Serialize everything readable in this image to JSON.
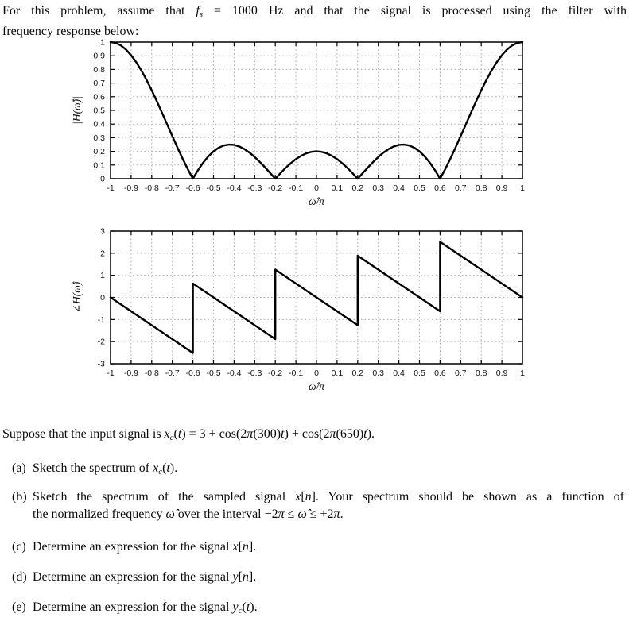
{
  "page": {
    "intro_lines": [
      [
        [
          "r",
          "For this problem, assume that "
        ],
        [
          "i",
          "f"
        ],
        [
          "is",
          "s"
        ],
        [
          "r",
          " = 1000 Hz and that the signal is processed using the filter with"
        ]
      ],
      [
        [
          "r",
          "frequency response below:"
        ]
      ]
    ],
    "suppose_line": [
      [
        "r",
        "Suppose that the input signal is "
      ],
      [
        "i",
        "x"
      ],
      [
        "is",
        "c"
      ],
      [
        "r",
        "("
      ],
      [
        "i",
        "t"
      ],
      [
        "r",
        ") = 3 + cos(2"
      ],
      [
        "i",
        "π"
      ],
      [
        "r",
        "(300)"
      ],
      [
        "i",
        "t"
      ],
      [
        "r",
        ") + cos(2"
      ],
      [
        "i",
        "π"
      ],
      [
        "r",
        "(650)"
      ],
      [
        "i",
        "t"
      ],
      [
        "r",
        ")."
      ]
    ],
    "items": [
      {
        "label": "(a)",
        "lines": [
          [
            [
              "r",
              "Sketch the spectrum of "
            ],
            [
              "i",
              "x"
            ],
            [
              "is",
              "c"
            ],
            [
              "r",
              "("
            ],
            [
              "i",
              "t"
            ],
            [
              "r",
              ")."
            ]
          ]
        ]
      },
      {
        "label": "(b)",
        "lines": [
          [
            [
              "r",
              "Sketch the spectrum of the sampled signal "
            ],
            [
              "i",
              "x"
            ],
            [
              "r",
              "["
            ],
            [
              "i",
              "n"
            ],
            [
              "r",
              "]. Your spectrum should be shown as a function of"
            ]
          ],
          [
            [
              "r",
              "the normalized frequency "
            ],
            [
              "i",
              "ω̂"
            ],
            [
              "r",
              " over the interval −2"
            ],
            [
              "i",
              "π"
            ],
            [
              "r",
              " ≤ "
            ],
            [
              "i",
              "ω̂"
            ],
            [
              "r",
              " ≤ +2"
            ],
            [
              "i",
              "π"
            ],
            [
              "r",
              "."
            ]
          ]
        ]
      },
      {
        "label": "(c)",
        "lines": [
          [
            [
              "r",
              "Determine an expression for the signal "
            ],
            [
              "i",
              "x"
            ],
            [
              "r",
              "["
            ],
            [
              "i",
              "n"
            ],
            [
              "r",
              "]."
            ]
          ]
        ]
      },
      {
        "label": "(d)",
        "lines": [
          [
            [
              "r",
              "Determine an expression for the signal "
            ],
            [
              "i",
              "y"
            ],
            [
              "r",
              "["
            ],
            [
              "i",
              "n"
            ],
            [
              "r",
              "]."
            ]
          ]
        ]
      },
      {
        "label": "(e)",
        "lines": [
          [
            [
              "r",
              "Determine an expression for the signal "
            ],
            [
              "i",
              "y"
            ],
            [
              "is",
              "c"
            ],
            [
              "r",
              "("
            ],
            [
              "i",
              "t"
            ],
            [
              "r",
              ")."
            ]
          ]
        ]
      }
    ]
  },
  "colors": {
    "curve": "#000000",
    "axis": "#000000",
    "grid": "#a8a8a8",
    "background": "#ffffff"
  },
  "chart_data": [
    {
      "type": "line",
      "title": "",
      "xlabel": "ω̂/π",
      "ylabel": "|H(ω̂)|",
      "xlim": [
        -1,
        1
      ],
      "ylim": [
        0,
        1
      ],
      "grid": true,
      "legend": "none",
      "xticks": [
        -1,
        -0.9,
        -0.8,
        -0.7,
        -0.6,
        -0.5,
        -0.4,
        -0.3,
        -0.2,
        -0.1,
        0,
        0.1,
        0.2,
        0.3,
        0.4,
        0.5,
        0.6,
        0.7,
        0.8,
        0.9,
        1
      ],
      "xtick_labels": [
        "-1",
        "-0.9",
        "-0.8",
        "-0.7",
        "-0.6",
        "-0.5",
        "-0.4",
        "-0.3",
        "-0.2",
        "-0.1",
        "0",
        "0.1",
        "0.2",
        "0.3",
        "0.4",
        "0.5",
        "0.6",
        "0.7",
        "0.8",
        "0.9",
        "1"
      ],
      "yticks": [
        0,
        0.1,
        0.2,
        0.3,
        0.4,
        0.5,
        0.6,
        0.7,
        0.8,
        0.9,
        1
      ],
      "ytick_labels": [
        "0",
        "0.1",
        "0.2",
        "0.3",
        "0.4",
        "0.5",
        "0.6",
        "0.7",
        "0.8",
        "0.9",
        "1"
      ],
      "series": [
        {
          "name": "magnitude-response",
          "x": [
            -1,
            -0.975,
            -0.95,
            -0.925,
            -0.9,
            -0.875,
            -0.85,
            -0.825,
            -0.8,
            -0.775,
            -0.75,
            -0.725,
            -0.7,
            -0.675,
            -0.65,
            -0.625,
            -0.6,
            -0.575,
            -0.55,
            -0.525,
            -0.5,
            -0.475,
            -0.45,
            -0.425,
            -0.4,
            -0.375,
            -0.35,
            -0.325,
            -0.3,
            -0.275,
            -0.25,
            -0.225,
            -0.2,
            -0.175,
            -0.15,
            -0.125,
            -0.1,
            -0.075,
            -0.05,
            -0.025,
            0,
            0.025,
            0.05,
            0.075,
            0.1,
            0.125,
            0.15,
            0.175,
            0.2,
            0.225,
            0.25,
            0.275,
            0.3,
            0.325,
            0.35,
            0.375,
            0.4,
            0.425,
            0.45,
            0.475,
            0.5,
            0.525,
            0.55,
            0.575,
            0.6,
            0.625,
            0.65,
            0.675,
            0.7,
            0.725,
            0.75,
            0.775,
            0.8,
            0.825,
            0.85,
            0.875,
            0.9,
            0.925,
            0.95,
            0.975,
            1
          ],
          "y": [
            1,
            0.9937,
            0.9755,
            0.9454,
            0.904,
            0.8524,
            0.7915,
            0.7226,
            0.6472,
            0.5668,
            0.4829,
            0.3972,
            0.3115,
            0.2274,
            0.1465,
            0.0702,
            0,
            0.063,
            0.1178,
            0.1637,
            0.2,
            0.2265,
            0.243,
            0.2498,
            0.2472,
            0.2359,
            0.2167,
            0.1906,
            0.1587,
            0.1224,
            0.0828,
            0.0416,
            0,
            0.0405,
            0.0787,
            0.1133,
            0.1432,
            0.1674,
            0.1853,
            0.1963,
            0.2,
            0.1963,
            0.1853,
            0.1674,
            0.1432,
            0.1133,
            0.0787,
            0.0405,
            0,
            0.0416,
            0.0828,
            0.1224,
            0.1587,
            0.1906,
            0.2167,
            0.2359,
            0.2472,
            0.2498,
            0.243,
            0.2265,
            0.2,
            0.1637,
            0.1178,
            0.063,
            0,
            0.0702,
            0.1465,
            0.2274,
            0.3115,
            0.3972,
            0.4829,
            0.5668,
            0.6472,
            0.7226,
            0.7915,
            0.8524,
            0.904,
            0.9454,
            0.9755,
            0.9937,
            1
          ]
        }
      ]
    },
    {
      "type": "line",
      "title": "",
      "xlabel": "ω̂/π",
      "ylabel": "∠H(ω̂)",
      "xlim": [
        -1,
        1
      ],
      "ylim": [
        -3,
        3
      ],
      "grid": true,
      "legend": "none",
      "xticks": [
        -1,
        -0.9,
        -0.8,
        -0.7,
        -0.6,
        -0.5,
        -0.4,
        -0.3,
        -0.2,
        -0.1,
        0,
        0.1,
        0.2,
        0.3,
        0.4,
        0.5,
        0.6,
        0.7,
        0.8,
        0.9,
        1
      ],
      "xtick_labels": [
        "-1",
        "-0.9",
        "-0.8",
        "-0.7",
        "-0.6",
        "-0.5",
        "-0.4",
        "-0.3",
        "-0.2",
        "-0.1",
        "0",
        "0.1",
        "0.2",
        "0.3",
        "0.4",
        "0.5",
        "0.6",
        "0.7",
        "0.8",
        "0.9",
        "1"
      ],
      "yticks": [
        -3,
        -2,
        -1,
        0,
        1,
        2,
        3
      ],
      "ytick_labels": [
        "-3",
        "-2",
        "-1",
        "0",
        "1",
        "2",
        "3"
      ],
      "series": [
        {
          "name": "phase-response",
          "x": [
            -1,
            -0.6,
            -0.6,
            -0.2,
            -0.2,
            0.2,
            0.2,
            0.6,
            0.6,
            1
          ],
          "y": [
            0,
            -2.513,
            0.628,
            -1.885,
            1.257,
            -1.257,
            1.885,
            -0.628,
            2.513,
            0
          ]
        }
      ]
    }
  ]
}
